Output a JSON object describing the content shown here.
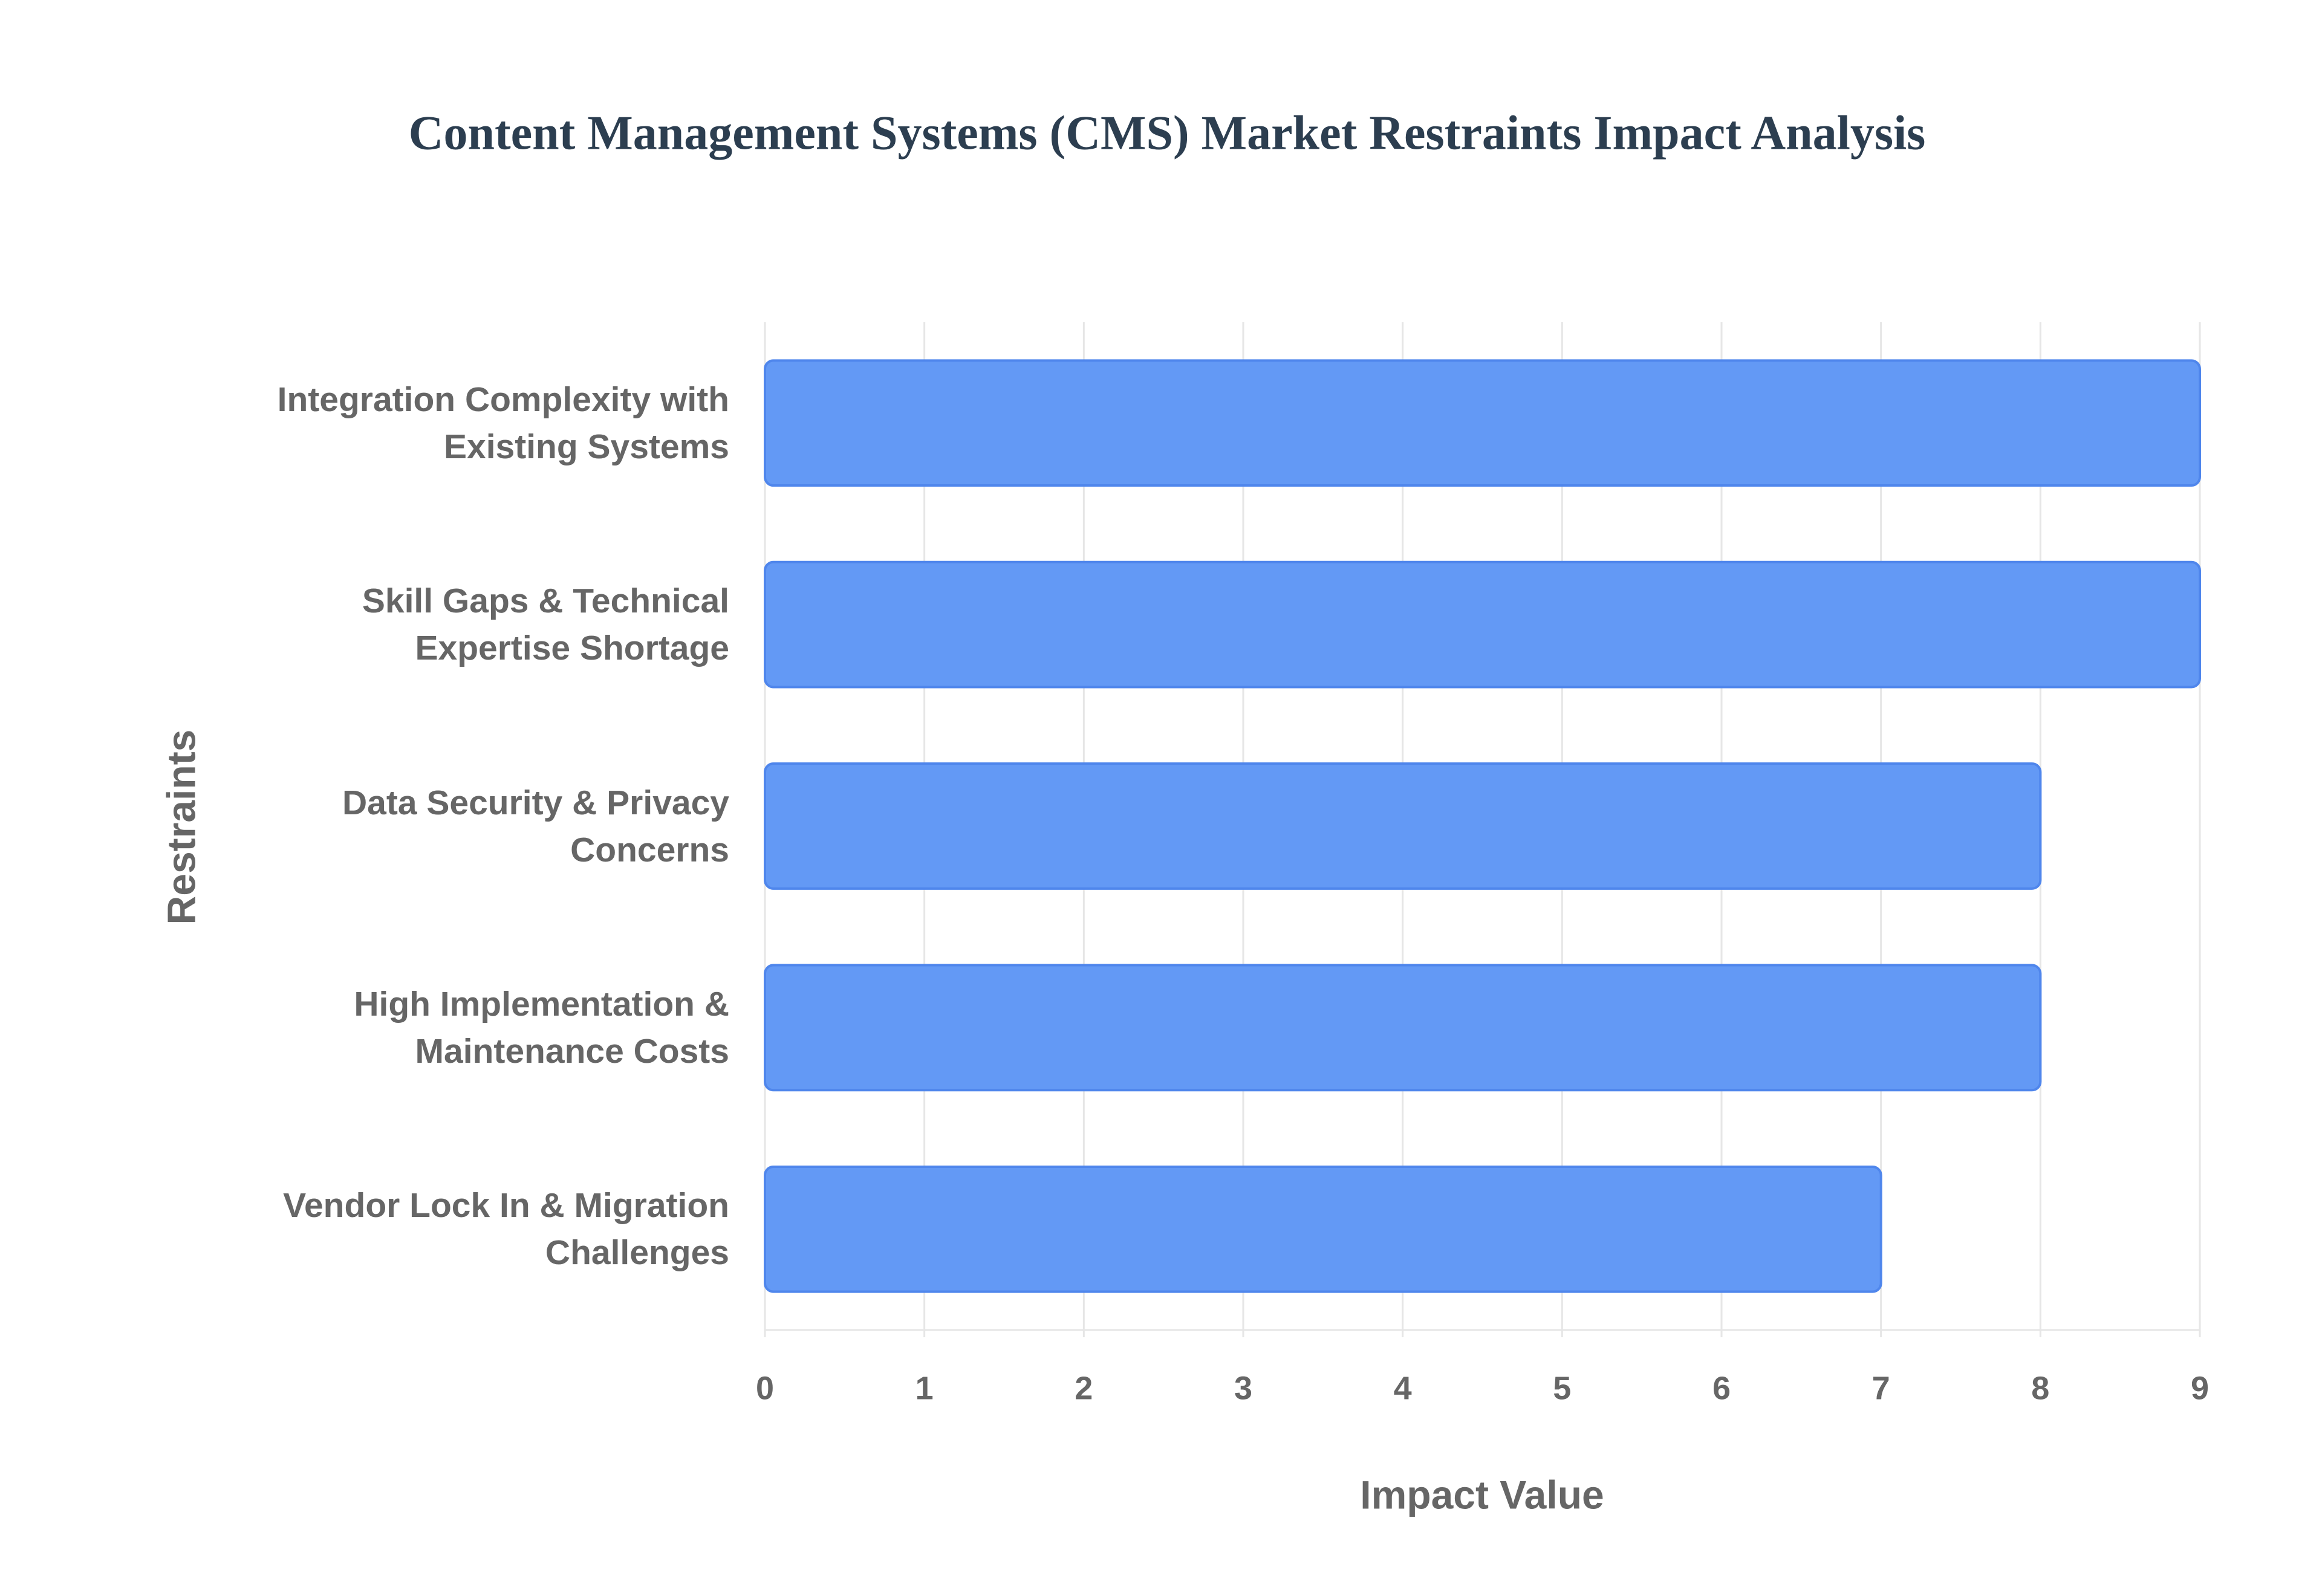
{
  "chart_data": {
    "type": "bar",
    "orientation": "horizontal",
    "title": "Content Management Systems (CMS) Market Restraints Impact Analysis",
    "xlabel": "Impact Value",
    "ylabel": "Restraints",
    "categories": [
      "Integration Complexity with Existing Systems",
      "Skill Gaps & Technical Expertise Shortage",
      "Data Security & Privacy Concerns",
      "High Implementation & Maintenance Costs",
      "Vendor Lock In & Migration Challenges"
    ],
    "values": [
      9,
      9,
      8,
      8,
      7
    ],
    "color": "#6399f5",
    "xlim": [
      0,
      9
    ],
    "xticks": [
      0,
      1,
      2,
      3,
      4,
      5,
      6,
      7,
      8,
      9
    ],
    "grid": true
  }
}
